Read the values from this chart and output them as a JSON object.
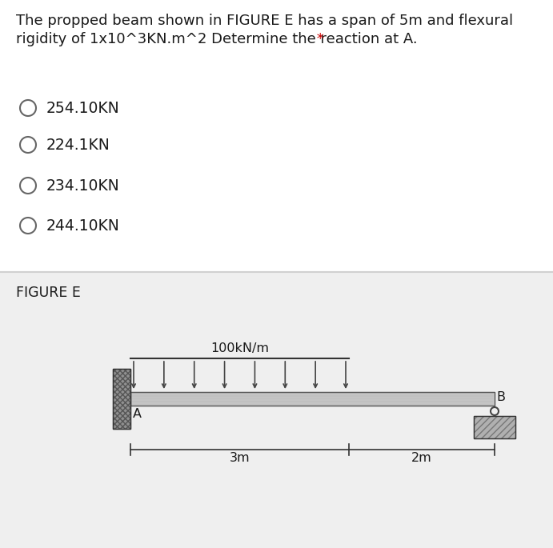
{
  "line1": "The propped beam shown in FIGURE E has a span of 5m and flexural",
  "line2": "rigidity of 1x10^3KN.m^2 Determine the reaction at A.",
  "title_star": " *",
  "options": [
    "254.10KN",
    "224.1KN",
    "234.10KN",
    "244.10KN"
  ],
  "figure_label": "FIGURE E",
  "load_label": "100kN/m",
  "dim_label_left": "3m",
  "dim_label_right": "2m",
  "label_A": "A",
  "label_B": "B",
  "bg_color": "#ffffff",
  "text_color": "#1a1a1a",
  "red_color": "#cc0000",
  "separator_color": "#d0d0d0",
  "bottom_bg_color": "#efefef",
  "beam_color": "#c8c8c8",
  "wall_color": "#909090",
  "support_color": "#b0b0b0",
  "arrow_color": "#444444",
  "line_color": "#333333",
  "text_fontsize": 13.0,
  "option_fontsize": 13.5,
  "fig_label_fontsize": 12.5,
  "diagram_fontsize": 11.5
}
